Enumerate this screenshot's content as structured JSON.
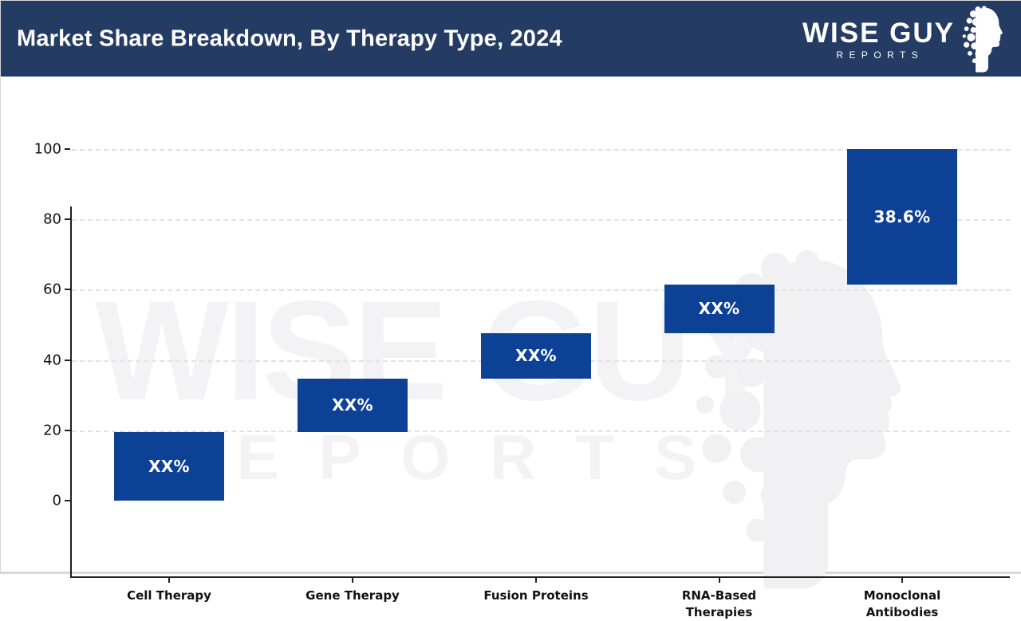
{
  "header": {
    "title": "Market Share Breakdown, By Therapy Type, 2024",
    "logo": {
      "line1": "WISE GUY",
      "line2": "REPORTS"
    }
  },
  "watermark": {
    "line1": "WISE GUY",
    "line2": "REPORTS"
  },
  "colors": {
    "header_bg": "#243b63",
    "bar_blue": "#0c4195",
    "title_text": "#ffffff",
    "axis": "#1f1f1f",
    "gridline": "#e2e2e2",
    "watermark": "#f3f3f5"
  },
  "chart_data": {
    "type": "bar",
    "subtype": "waterfall",
    "title": "Market Share Breakdown, By Therapy Type, 2024",
    "categories": [
      "Cell Therapy",
      "Gene Therapy",
      "Fusion Proteins",
      "RNA-Based Therapies",
      "Monoclonal Antibodies"
    ],
    "tick_labels": [
      "Cell Therapy",
      "Gene Therapy",
      "Fusion Proteins",
      "RNA-Based\nTherapies",
      "Monoclonal\nAntibodies"
    ],
    "segments": [
      {
        "category": "Cell Therapy",
        "start": 0,
        "end": 19.5,
        "label": "XX%"
      },
      {
        "category": "Gene Therapy",
        "start": 19.5,
        "end": 34.7,
        "label": "XX%"
      },
      {
        "category": "Fusion Proteins",
        "start": 34.7,
        "end": 47.7,
        "label": "XX%"
      },
      {
        "category": "RNA-Based Therapies",
        "start": 47.7,
        "end": 61.4,
        "label": "XX%"
      },
      {
        "category": "Monoclonal Antibodies",
        "start": 61.4,
        "end": 100,
        "label": "38.6%",
        "value": 38.6
      }
    ],
    "xlabel": "",
    "ylabel": "",
    "ylim": [
      0,
      100
    ],
    "yticks": [
      0,
      20,
      40,
      60,
      80,
      100
    ],
    "grid": "horizontal dashed",
    "legend": "none",
    "bar_color": "#0c4195"
  }
}
